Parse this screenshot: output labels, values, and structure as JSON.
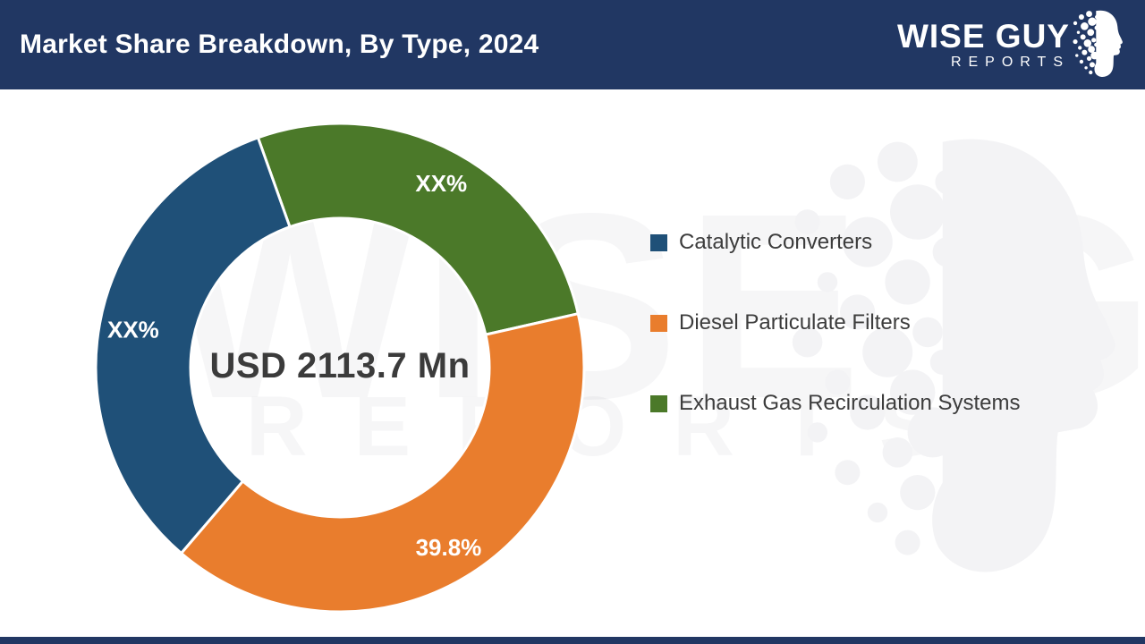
{
  "colors": {
    "navy": "#213763",
    "blue": "#1f5078",
    "orange": "#e97d2d",
    "green": "#4b7929",
    "white": "#ffffff",
    "center_text": "#3b3b3b",
    "legend_text": "#3c3c3c"
  },
  "header": {
    "title": "Market Share Breakdown, By Type, 2024",
    "logo": {
      "line1": "WISE GUY",
      "line2": "REPORTS"
    }
  },
  "watermark": {
    "line1": "WISE GUY",
    "line2": "REPORTS"
  },
  "chart_data": {
    "type": "pie",
    "subtype": "donut",
    "title": "Market Share Breakdown, By Type, 2024",
    "center_label": "USD 2113.7 Mn",
    "start_angle_deg": -19.6,
    "legend_position": "right",
    "segments": [
      {
        "name": "Exhaust Gas Recirculation Systems",
        "pct": 26.9,
        "display_label": "XX%",
        "color_key": "green"
      },
      {
        "name": "Diesel Particulate Filters",
        "pct": 39.8,
        "display_label": "39.8%",
        "color_key": "orange"
      },
      {
        "name": "Catalytic Converters",
        "pct": 33.3,
        "display_label": "XX%",
        "color_key": "blue"
      }
    ],
    "legend_order": [
      2,
      1,
      0
    ]
  }
}
